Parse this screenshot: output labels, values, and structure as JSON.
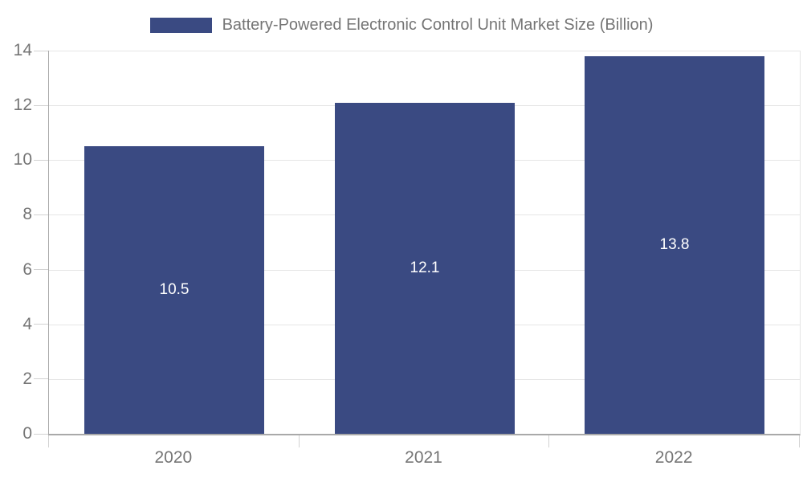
{
  "chart_data": {
    "type": "bar",
    "title": "Battery-Powered Electronic Control Unit Market Size (Billion)",
    "legend": {
      "position": "top",
      "entries": [
        {
          "label": "Battery-Powered Electronic Control Unit Market Size (Billion)",
          "color": "#3A4A82"
        }
      ]
    },
    "categories": [
      "2020",
      "2021",
      "2022"
    ],
    "values": [
      10.5,
      12.1,
      13.8
    ],
    "data_labels": [
      "10.5",
      "12.1",
      "13.8"
    ],
    "xlabel": "",
    "ylabel": "",
    "ylim": [
      0,
      14
    ],
    "yticks": [
      0,
      2,
      4,
      6,
      8,
      10,
      12,
      14
    ],
    "grid": true,
    "colors": {
      "bar": "#3A4A82",
      "grid": "#E5E5E5",
      "axis": "#A9A9A9",
      "tick": "#D2D2D2",
      "text": "#757575",
      "data_label": "#FFFFFF",
      "background": "#FFFFFF"
    }
  }
}
